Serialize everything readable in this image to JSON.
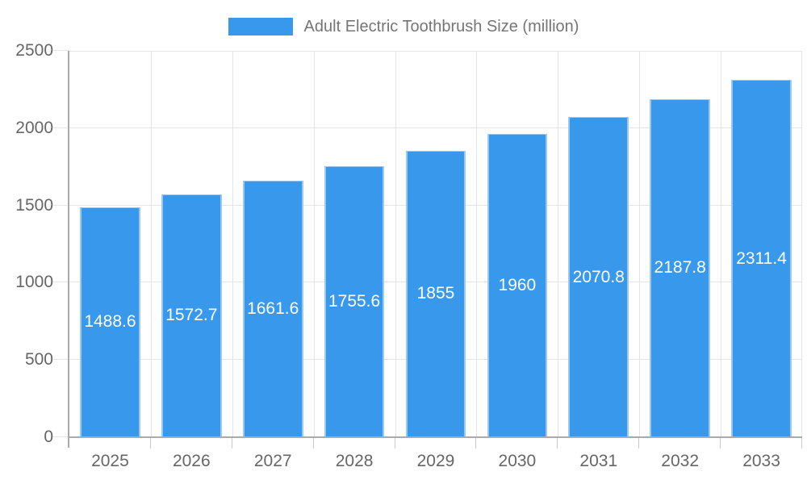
{
  "legend": {
    "label": "Adult Electric Toothbrush Size (million)"
  },
  "chart_data": {
    "type": "bar",
    "title": "",
    "series_name": "Adult Electric Toothbrush Size (million)",
    "categories": [
      "2025",
      "2026",
      "2027",
      "2028",
      "2029",
      "2030",
      "2031",
      "2032",
      "2033"
    ],
    "values": [
      1488.6,
      1572.7,
      1661.6,
      1755.6,
      1855,
      1960,
      2070.8,
      2187.8,
      2311.4
    ],
    "xlabel": "",
    "ylabel": "",
    "ylim": [
      0,
      2500
    ],
    "yticks": [
      0,
      500,
      1000,
      1500,
      2000,
      2500
    ],
    "grid": true,
    "legend_position": "top-center",
    "value_label_position": "inside-center",
    "colors": {
      "bar_fill": "#3899EC",
      "bar_border": "#9CC8F4",
      "bar_label_text": "#FFFFFF",
      "axis_text": "#666666",
      "legend_text": "#757575",
      "grid_line": "#E4E4E4",
      "axis_line": "#ABABAB",
      "boundary_tick": "#C9C9C9",
      "background": "#FFFFFF"
    }
  }
}
